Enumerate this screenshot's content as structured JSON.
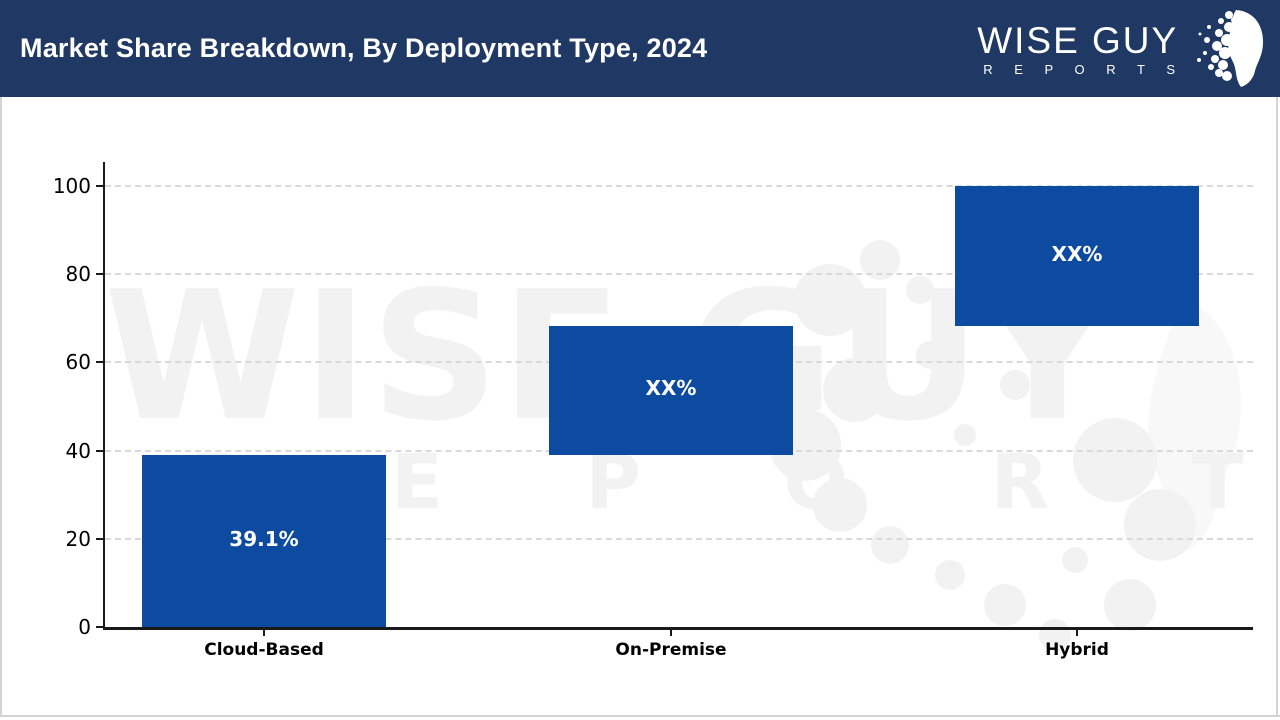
{
  "page": {
    "bg": "#FFFFFF",
    "border_color": "#D4D4D4"
  },
  "header": {
    "bg_color": "#1F3864",
    "title": "Market Share Breakdown, By Deployment Type, 2024",
    "title_color": "#FFFFFF",
    "logo": {
      "line1": "WISE GUY",
      "line2": "R E P O R T S"
    }
  },
  "watermark": {
    "line1": "WISE GUY",
    "line2": "R E P O R T S",
    "color": "#F2F2F2"
  },
  "chart_data": {
    "type": "bar",
    "subtype": "waterfall",
    "title": "Market Share Breakdown, By Deployment Type, 2024",
    "categories": [
      "Cloud-Based",
      "On-Premise",
      "Hybrid"
    ],
    "segments": [
      {
        "category": "Cloud-Based",
        "start": 0,
        "end": 39.1,
        "label": "39.1%"
      },
      {
        "category": "On-Premise",
        "start": 39.1,
        "end": 68.3,
        "label": "XX%"
      },
      {
        "category": "Hybrid",
        "start": 68.3,
        "end": 100,
        "label": "XX%"
      }
    ],
    "ylim": [
      0,
      100
    ],
    "yticks": [
      0,
      20,
      40,
      60,
      80,
      100
    ],
    "xlabel": "",
    "ylabel": "",
    "legend": "none",
    "grid": {
      "show": true,
      "style": "dashed",
      "color": "#D9D9D9"
    },
    "bar_color": "#0C4BA0",
    "bar_label_color": "#FFFFFF",
    "axis_color": "#1A1A1A",
    "tick_label_color": "#000000"
  }
}
